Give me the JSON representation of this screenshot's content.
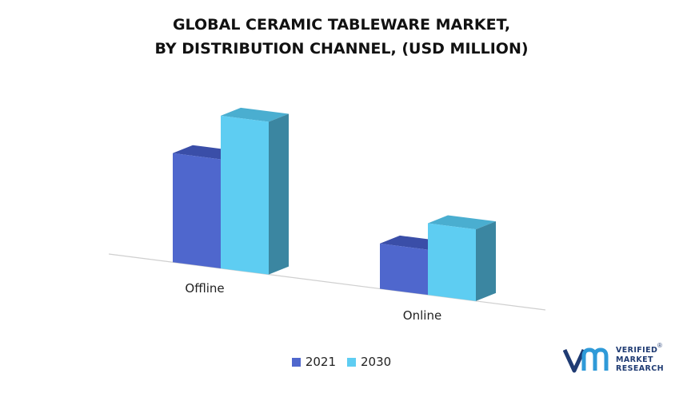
{
  "title": {
    "line1": "GLOBAL CERAMIC TABLEWARE MARKET,",
    "line2": "BY DISTRIBUTION CHANNEL, (USD MILLION)"
  },
  "chart_data": {
    "type": "bar",
    "title": "GLOBAL CERAMIC TABLEWARE MARKET, BY DISTRIBUTION CHANNEL, (USD MILLION)",
    "categories": [
      "Offline",
      "Online"
    ],
    "series": [
      {
        "name": "2021",
        "values": [
          140,
          58
        ]
      },
      {
        "name": "2030",
        "values": [
          196,
          92
        ]
      }
    ],
    "xlabel": "",
    "ylabel": "",
    "ylim": [
      0,
      200
    ],
    "grid": false,
    "legend_position": "bottom",
    "style": "3d-bar",
    "colors": {
      "2021": {
        "front": "#4f67cd",
        "top": "#3a4ea8",
        "side": "#3a4ea8"
      },
      "2030": {
        "front": "#5ecdf2",
        "top": "#4aaed0",
        "side": "#3b86a1"
      }
    }
  },
  "logo": {
    "line1": "VERIFIED",
    "line2": "MARKET",
    "line3": "RESEARCH",
    "mark": "®",
    "color": "#1f3b73"
  }
}
